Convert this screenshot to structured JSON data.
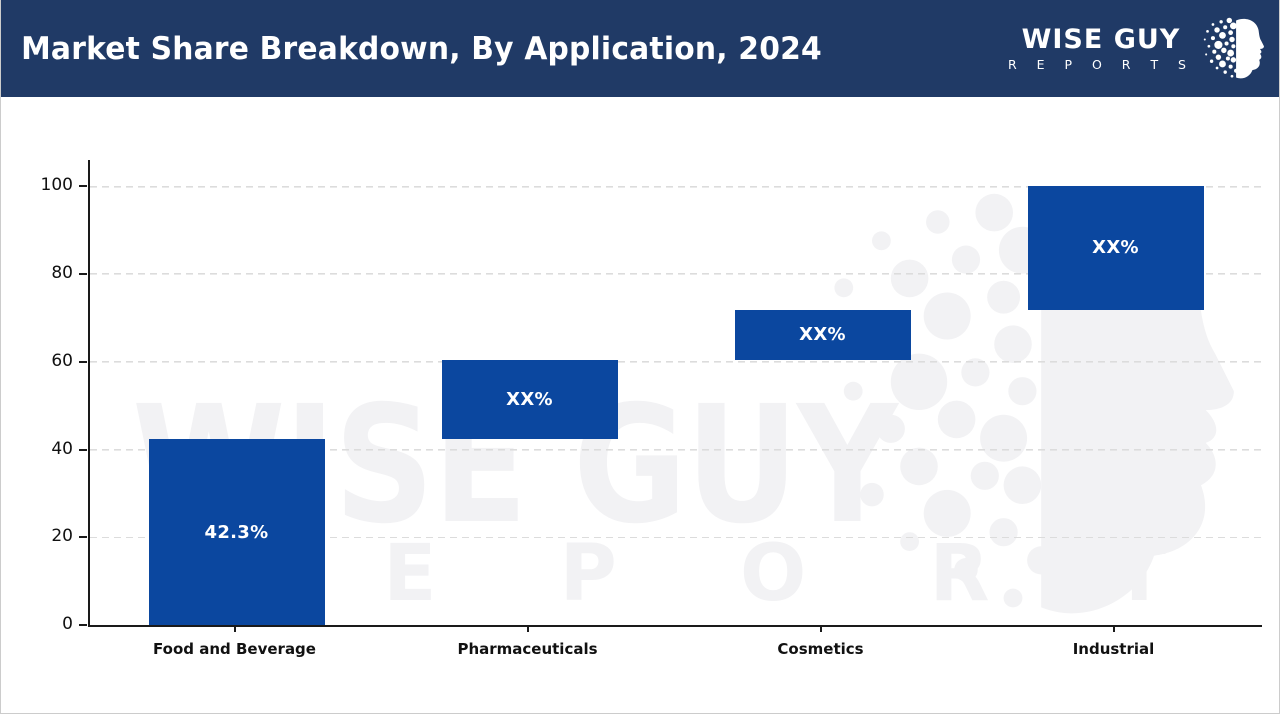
{
  "header": {
    "title": "Market Share Breakdown, By Application, 2024",
    "brand": {
      "line1": "WISE GUY",
      "line2": "R E P O R T S"
    }
  },
  "watermark": {
    "line1": "WISE GUY",
    "line2": "REPORTS"
  },
  "colors": {
    "header_bg": "#203a66",
    "bar": "#0b479f",
    "grid": "#dcdcdc",
    "watermark": "#f2f2f4",
    "axis": "#1a1a1a",
    "bar_label": "#ffffff"
  },
  "chart_data": {
    "type": "bar",
    "subtype": "waterfall",
    "title": "Market Share Breakdown, By Application, 2024",
    "categories": [
      "Food and Beverage",
      "Pharmaceuticals",
      "Cosmetics",
      "Industrial"
    ],
    "segments": [
      {
        "category": "Food and Beverage",
        "start": 0,
        "end": 42.3,
        "value": 42.3,
        "label": "42.3%"
      },
      {
        "category": "Pharmaceuticals",
        "start": 42.3,
        "end": 60.5,
        "value": 18.2,
        "label": "XX%"
      },
      {
        "category": "Cosmetics",
        "start": 60.5,
        "end": 71.9,
        "value": 11.4,
        "label": "XX%"
      },
      {
        "category": "Industrial",
        "start": 71.9,
        "end": 100,
        "value": 28.1,
        "label": "XX%"
      }
    ],
    "yticks": [
      0,
      20,
      40,
      60,
      80,
      100
    ],
    "ylim": [
      0,
      106
    ],
    "xlabel": "",
    "ylabel": "",
    "grid": "dashed-horizontal",
    "legend": "none",
    "bar_color": "#0b479f"
  }
}
